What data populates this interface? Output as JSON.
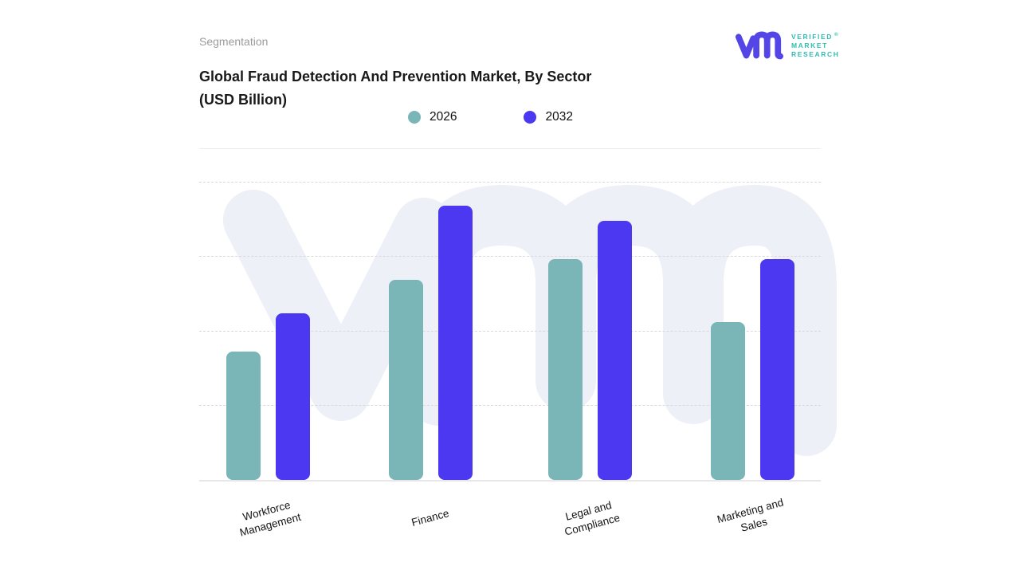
{
  "header": {
    "eyebrow": "Segmentation",
    "title_line1": "Global Fraud Detection And Prevention Market, By Sector",
    "title_line2": "(USD Billion)"
  },
  "logo": {
    "lines": [
      "VERIFIED",
      "MARKET",
      "RESEARCH"
    ],
    "registered_mark": "®",
    "mark_color": "#5345e6",
    "text_color": "#2fbdb3"
  },
  "watermark": {
    "name": "vmr-logo-watermark",
    "color": "#eef0f8"
  },
  "chart_data": {
    "type": "bar",
    "title": "Global Fraud Detection And Prevention Market, By Sector (USD Billion)",
    "categories": [
      "Workforce Management",
      "Finance",
      "Legal and Compliance",
      "Marketing and Sales"
    ],
    "x_labels_lines": [
      [
        "Workforce",
        "Management"
      ],
      [
        "Finance"
      ],
      [
        "Legal and",
        "Compliance"
      ],
      [
        "Marketing and",
        "Sales"
      ]
    ],
    "series": [
      {
        "name": "2026",
        "color": "#7ab5b8",
        "values": [
          43,
          67,
          74,
          53
        ]
      },
      {
        "name": "2032",
        "color": "#4b38f0",
        "values": [
          56,
          92,
          87,
          74
        ]
      }
    ],
    "ylim": [
      0,
      100
    ],
    "y_tick_labels_visible": false,
    "grid": "horizontal-dashed",
    "gridline_color": "#d9d9dd",
    "legend_position": "top-center",
    "xlabel": "",
    "ylabel": ""
  }
}
